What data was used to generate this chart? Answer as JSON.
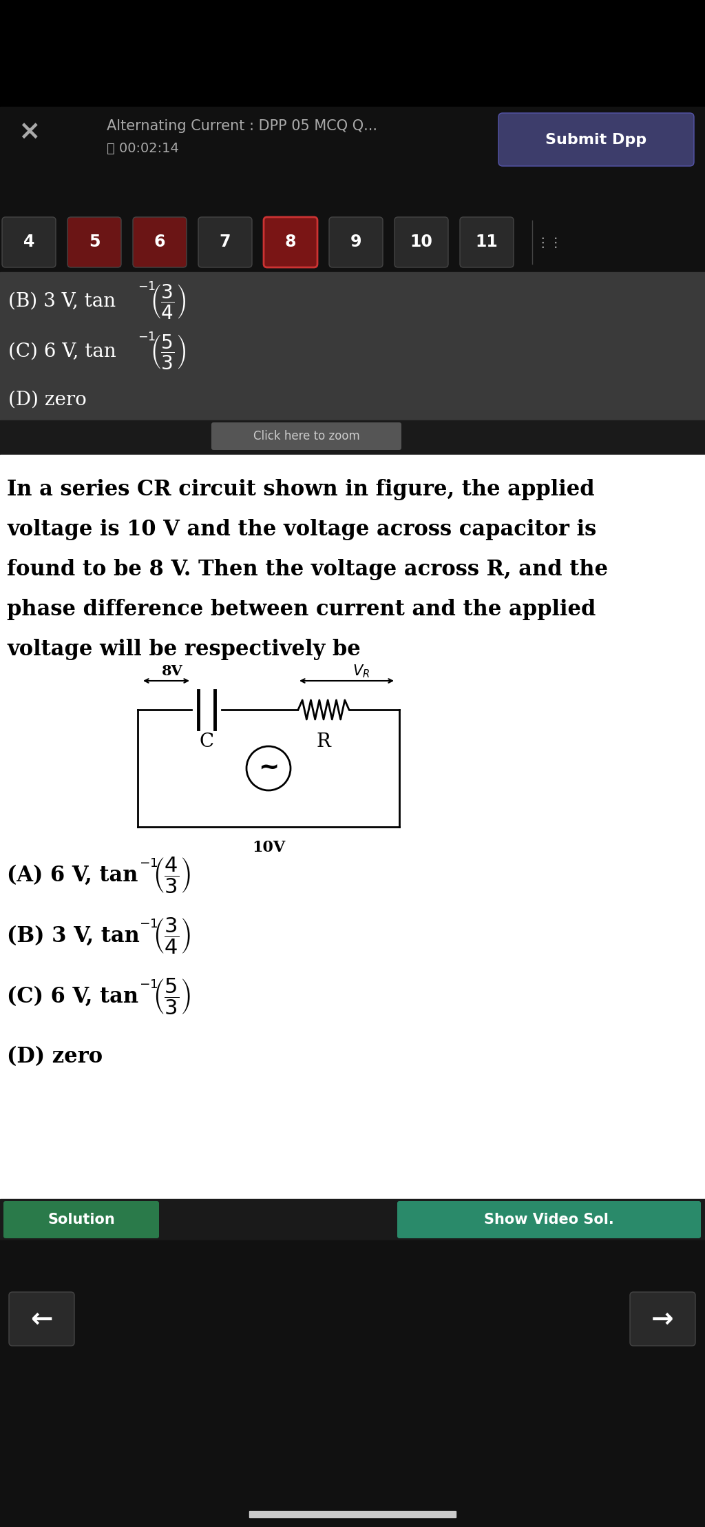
{
  "bg_top": "#111111",
  "bg_card": "#3a3a3a",
  "bg_white": "#ffffff",
  "header_title": "Alternating Current : DPP 05 MCQ Q...",
  "header_timer": "00:02:14",
  "submit_btn_text": "Submit Dpp",
  "submit_btn_color": "#3d3d6b",
  "nav_numbers": [
    "4",
    "5",
    "6",
    "7",
    "8",
    "9",
    "10",
    "11"
  ],
  "nav_bg": "#111111",
  "nav_colors": {
    "4": "#2a2a2a",
    "5": "#6b1515",
    "6": "#6b1515",
    "7": "#2a2a2a",
    "8": "#7a1515",
    "9": "#2a2a2a",
    "10": "#2a2a2a",
    "11": "#2a2a2a"
  },
  "prev_area_color": "#3a3a3a",
  "zoom_area_color": "#111111",
  "zoom_btn_color": "#555555",
  "q_line1": "In a series CR circuit shown in figure, the applied",
  "q_line2": "voltage is 10 V and the voltage across capacitor is",
  "q_line3": "found to be 8 V. Then the voltage across R, and the",
  "q_line4": "phase difference between current and the applied",
  "q_line5": "voltage will be respectively be",
  "solution_btn_color": "#2a7a4a",
  "show_video_btn_color": "#2a7a4a",
  "bottom_dark": "#111111",
  "nav_dot_color": "#aaaaaa",
  "fig_width": 10.24,
  "fig_height": 22.16
}
